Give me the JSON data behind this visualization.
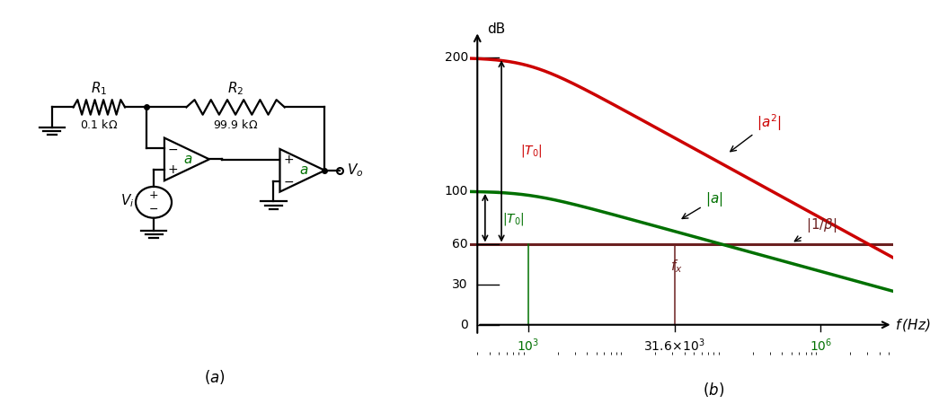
{
  "bode": {
    "f_pole": 1000,
    "a0_dB": 100,
    "a2_0_dB": 200,
    "beta_inv_dB": 60,
    "color_a": "#007000",
    "color_a2": "#cc0000",
    "color_beta": "#6b2020",
    "yticks": [
      0,
      30,
      60,
      100,
      200
    ],
    "xtick_freqs": [
      1000,
      31600,
      1000000
    ],
    "xtick_labels": [
      "$10^3$",
      "$31.6\\times10^3$",
      "$10^6$"
    ]
  }
}
